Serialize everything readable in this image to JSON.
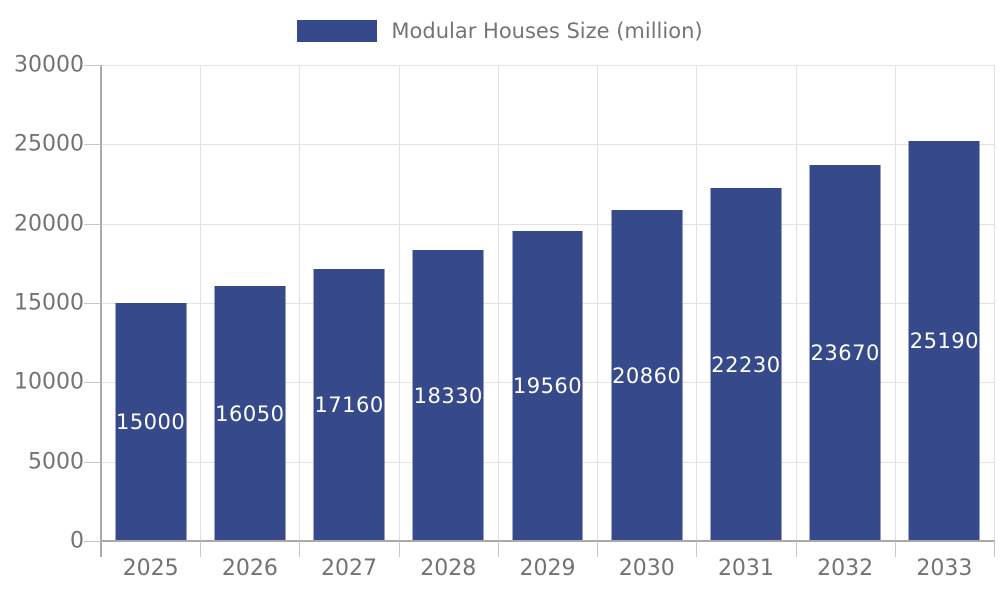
{
  "chart_data": {
    "type": "bar",
    "title": "",
    "legend": "Modular Houses Size (million)",
    "categories": [
      "2025",
      "2026",
      "2027",
      "2028",
      "2029",
      "2030",
      "2031",
      "2032",
      "2033"
    ],
    "values": [
      15000,
      16050,
      17160,
      18330,
      19560,
      20860,
      22230,
      23670,
      25190
    ],
    "xlabel": "",
    "ylabel": "",
    "ylim": [
      0,
      30000
    ],
    "yticks": [
      0,
      5000,
      10000,
      15000,
      20000,
      25000,
      30000
    ],
    "grid": true,
    "legend_position": "top-center",
    "colors": {
      "bar": "#364A8B",
      "value_label": "#ffffff",
      "grid": "#e2e2e2",
      "axis": "#a9a9a9",
      "tick_mark": "#c6c6c6",
      "tick_label": "#737373",
      "legend_text": "#757575",
      "background": "#ffffff"
    }
  }
}
